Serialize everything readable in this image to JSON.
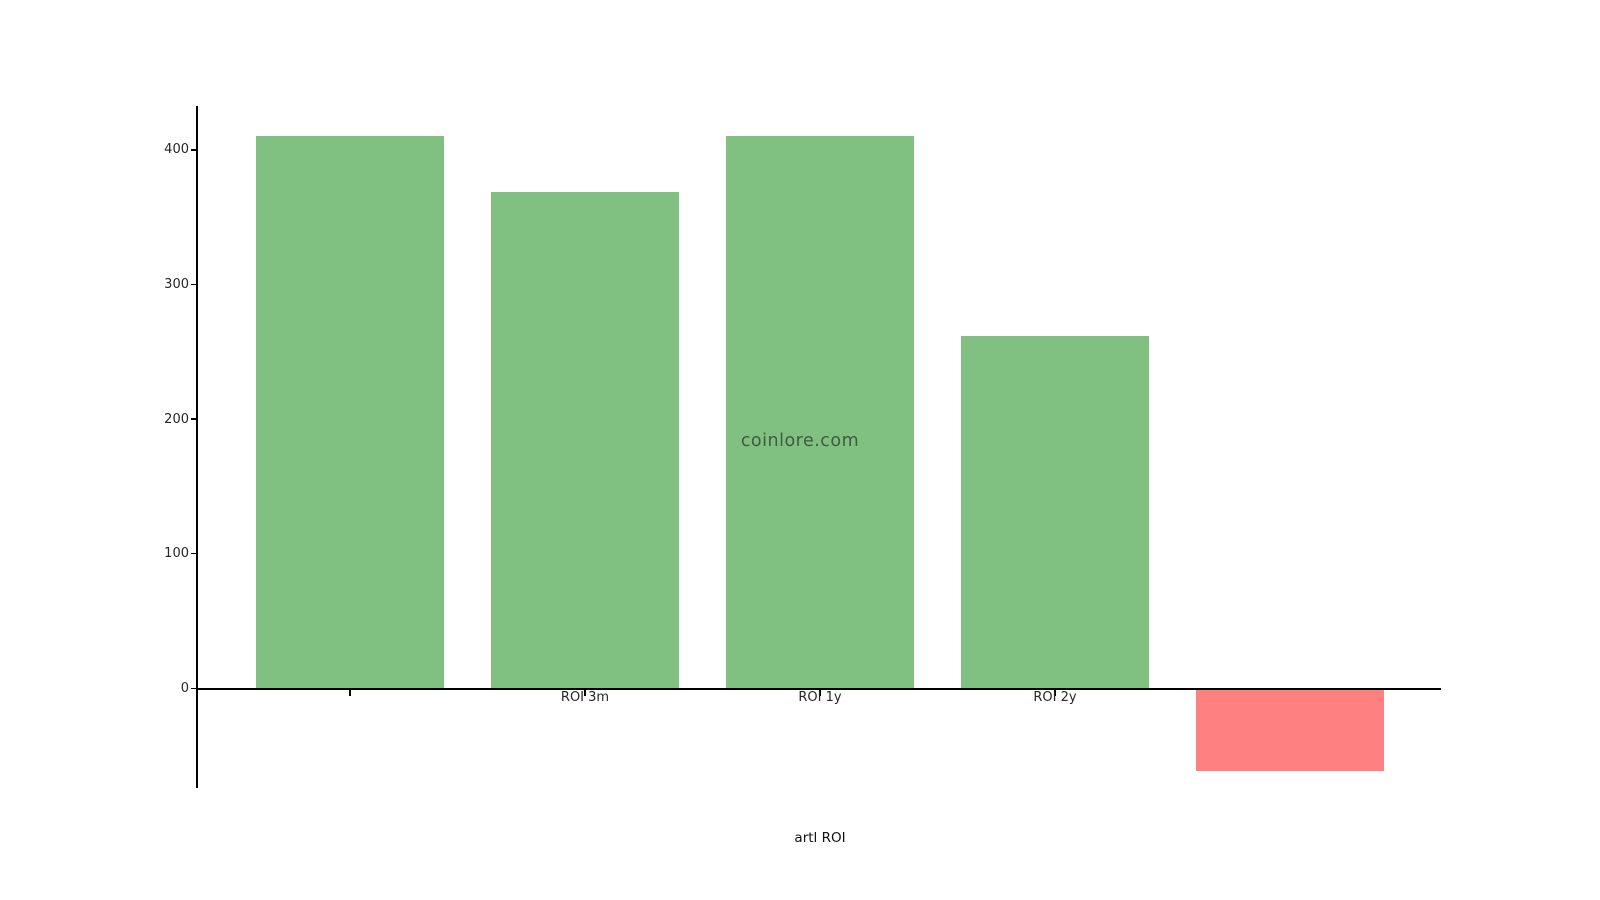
{
  "watermark": "coinlore.com",
  "chart_data": {
    "type": "bar",
    "categories": [
      "",
      "ROI 3m",
      "ROI 1y",
      "ROI 2y",
      ""
    ],
    "values": [
      410,
      369,
      410,
      262,
      -60
    ],
    "title": "",
    "xlabel": "artl ROI",
    "ylabel": "",
    "yticks": [
      0,
      100,
      200,
      300,
      400
    ],
    "ylim": [
      -83,
      433
    ],
    "grid": false,
    "legend_position": "none",
    "x_ticks_at_bars": [
      0,
      1,
      2,
      3
    ],
    "colors": {
      "positive_bar": "#80c080",
      "negative_bar": "#ff8080",
      "axis": "#000000",
      "tick_text": "#262626",
      "watermark_text": "#3a3a3a"
    }
  }
}
